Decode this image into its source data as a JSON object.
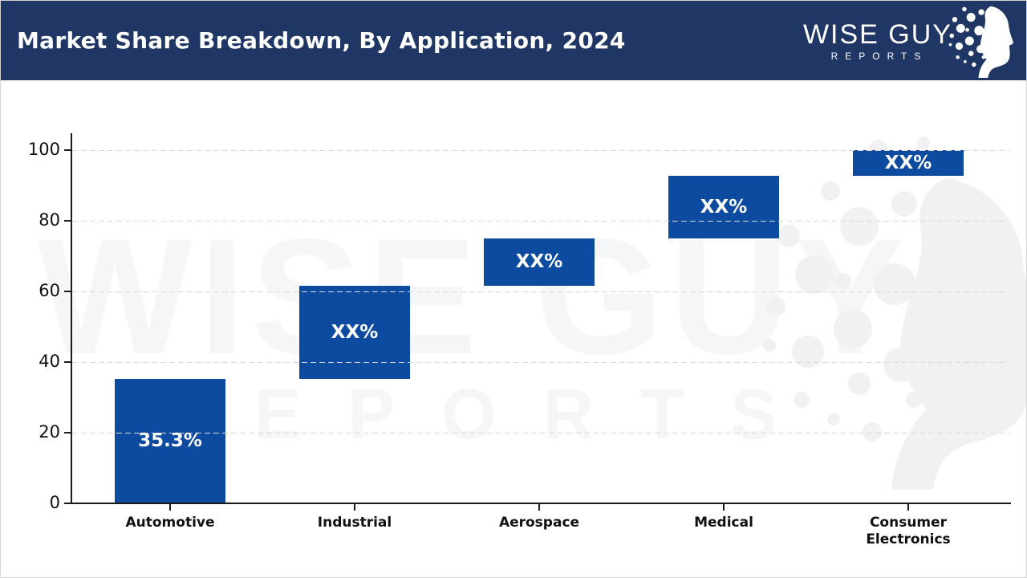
{
  "header": {
    "title": "Market Share Breakdown, By Application, 2024",
    "logo": {
      "line1": "WISE GUY",
      "line2": "REPORTS"
    }
  },
  "watermark": {
    "line1": "WISE GUY",
    "line2": "REPORTS"
  },
  "chart_data": {
    "type": "bar",
    "subtype": "floating-waterfall",
    "title": "Market Share Breakdown, By Application, 2024",
    "xlabel": "",
    "ylabel": "",
    "categories": [
      "Automotive",
      "Industrial",
      "Aerospace",
      "Medical",
      "Consumer Electronics"
    ],
    "bars": [
      {
        "category": "Automotive",
        "start": 0,
        "end": 35.3,
        "label": "35.3%"
      },
      {
        "category": "Industrial",
        "start": 35.3,
        "end": 61.6,
        "label": "XX%"
      },
      {
        "category": "Aerospace",
        "start": 61.6,
        "end": 75.0,
        "label": "XX%"
      },
      {
        "category": "Medical",
        "start": 75.0,
        "end": 92.7,
        "label": "XX%"
      },
      {
        "category": "Consumer Electronics",
        "start": 92.7,
        "end": 100.0,
        "label": "XX%"
      }
    ],
    "yticks": [
      0,
      20,
      40,
      60,
      80,
      100
    ],
    "ylim": [
      0,
      105
    ],
    "grid": "horizontal-dashed",
    "legend": "none",
    "bar_color": "#0c4b9f",
    "header_color": "#203765",
    "label_color": "#ffffff"
  }
}
